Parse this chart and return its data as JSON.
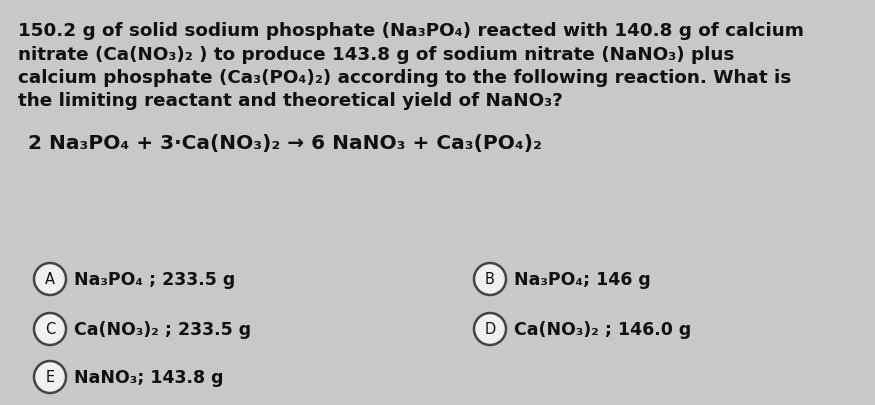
{
  "bg_color": "#c8c8c8",
  "text_color": "#111111",
  "para_line1": "150.2 g of solid sodium phosphate (Na₃PO₄) reacted with 140.8 g of calcium",
  "para_line2": "nitrate (Ca(NO₃)₂ ) to produce 143.8 g of sodium nitrate (NaNO₃) plus",
  "para_line3": "calcium phosphate (Ca₃(PO₄)₂) according to the following reaction. What is",
  "para_line4": "the limiting reactant and theoretical yield of NaNO₃?",
  "equation": "2 Na₃PO₄ + 3·Ca(NO₃)₂ → 6 NaNO₃ + Ca₃(PO₄)₂",
  "options": [
    {
      "label": "A",
      "text": "Na₃PO₄ ; 233.5 g",
      "col": 0,
      "row": 0
    },
    {
      "label": "B",
      "text": "Na₃PO₄; 146 g",
      "col": 1,
      "row": 0
    },
    {
      "label": "C",
      "text": "Ca(NO₃)₂ ; 233.5 g",
      "col": 0,
      "row": 1
    },
    {
      "label": "D",
      "text": "Ca(NO₃)₂ ; 146.0 g",
      "col": 1,
      "row": 1
    },
    {
      "label": "E",
      "text": "NaNO₃; 143.8 g",
      "col": 0,
      "row": 2
    }
  ],
  "circle_facecolor": "#f0f0f0",
  "circle_edgecolor": "#444444",
  "circle_linewidth": 1.8,
  "para_fontsize": 13.2,
  "eq_fontsize": 14.5,
  "option_fontsize": 12.5,
  "label_fontsize": 10.5
}
